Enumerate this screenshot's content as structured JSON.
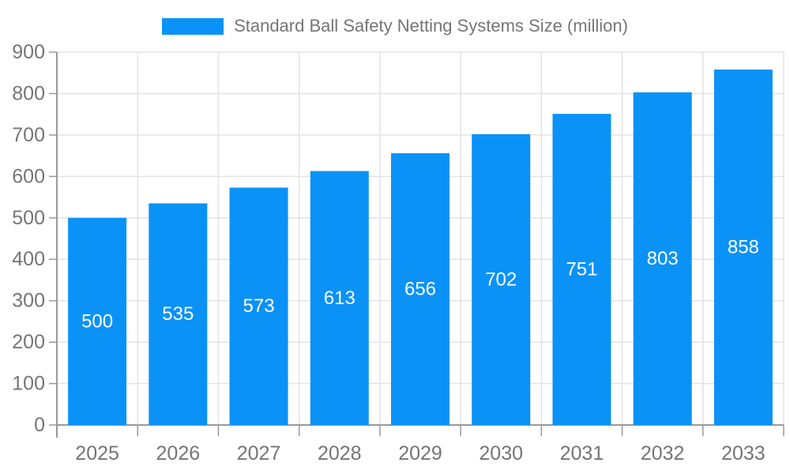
{
  "chart_data": {
    "type": "bar",
    "title": "Standard Ball Safety Netting Systems Size (million)",
    "legend": [
      "Standard Ball Safety Netting Systems Size (million)"
    ],
    "legend_position": "top",
    "categories": [
      "2025",
      "2026",
      "2027",
      "2028",
      "2029",
      "2030",
      "2031",
      "2032",
      "2033"
    ],
    "values": [
      500,
      535,
      573,
      613,
      656,
      702,
      751,
      803,
      858
    ],
    "xlabel": "",
    "ylabel": "",
    "ylim": [
      0,
      900
    ],
    "yticks": [
      0,
      100,
      200,
      300,
      400,
      500,
      600,
      700,
      800,
      900
    ],
    "grid": "horizontal and vertical",
    "value_labels": "inside-center",
    "colors": {
      "bar": "#0b92f6",
      "value_label": "#ffffff",
      "axis_text": "#757575",
      "axis_line": "#999999",
      "gridline": "#e3e3e3",
      "background": "#ffffff"
    }
  }
}
